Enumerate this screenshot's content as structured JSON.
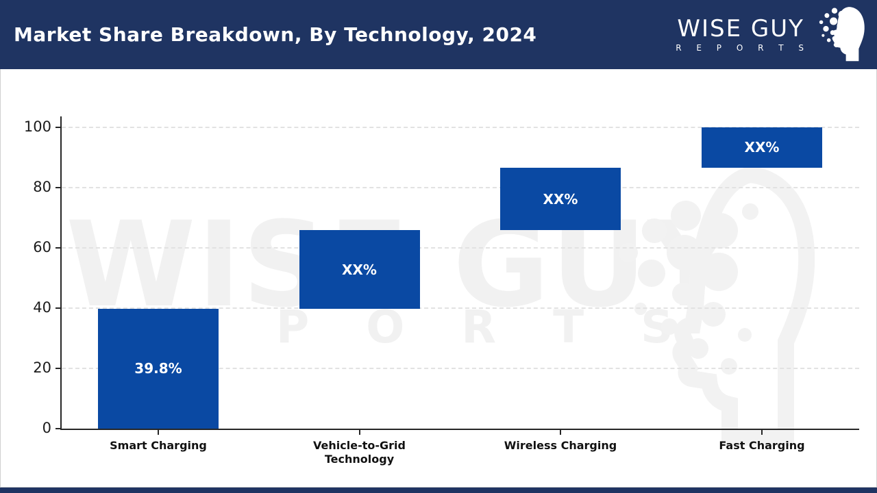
{
  "header": {
    "title": "Market Share Breakdown, By Technology, 2024",
    "brand_line1": "WISE GUY",
    "brand_line2": "R E P O R T S",
    "bg_color": "#1f3462"
  },
  "watermark": {
    "line1": "WISE GUY",
    "line2": "R E P O R T S"
  },
  "chart_data": {
    "type": "bar",
    "subtype": "waterfall",
    "title": "Market Share Breakdown, By Technology, 2024",
    "categories": [
      "Smart Charging",
      "Vehicle-to-Grid\nTechnology",
      "Wireless Charging",
      "Fast Charging"
    ],
    "segments": [
      {
        "category": "Smart Charging",
        "start": 0,
        "end": 39.8,
        "label": "39.8%"
      },
      {
        "category": "Vehicle-to-Grid Technology",
        "start": 39.8,
        "end": 65.8,
        "label": "XX%"
      },
      {
        "category": "Wireless Charging",
        "start": 65.8,
        "end": 86.6,
        "label": "XX%"
      },
      {
        "category": "Fast Charging",
        "start": 86.6,
        "end": 100,
        "label": "XX%"
      }
    ],
    "xlabel": "",
    "ylabel": "",
    "yticks": [
      0,
      20,
      40,
      60,
      80,
      100
    ],
    "ylim": [
      0,
      103.6
    ],
    "grid": "horizontal-dashed",
    "legend": "none",
    "bar_color": "#0a49a3",
    "bar_label_color": "#ffffff",
    "axis_color": "#262626",
    "grid_color": "#e2e2e2"
  }
}
